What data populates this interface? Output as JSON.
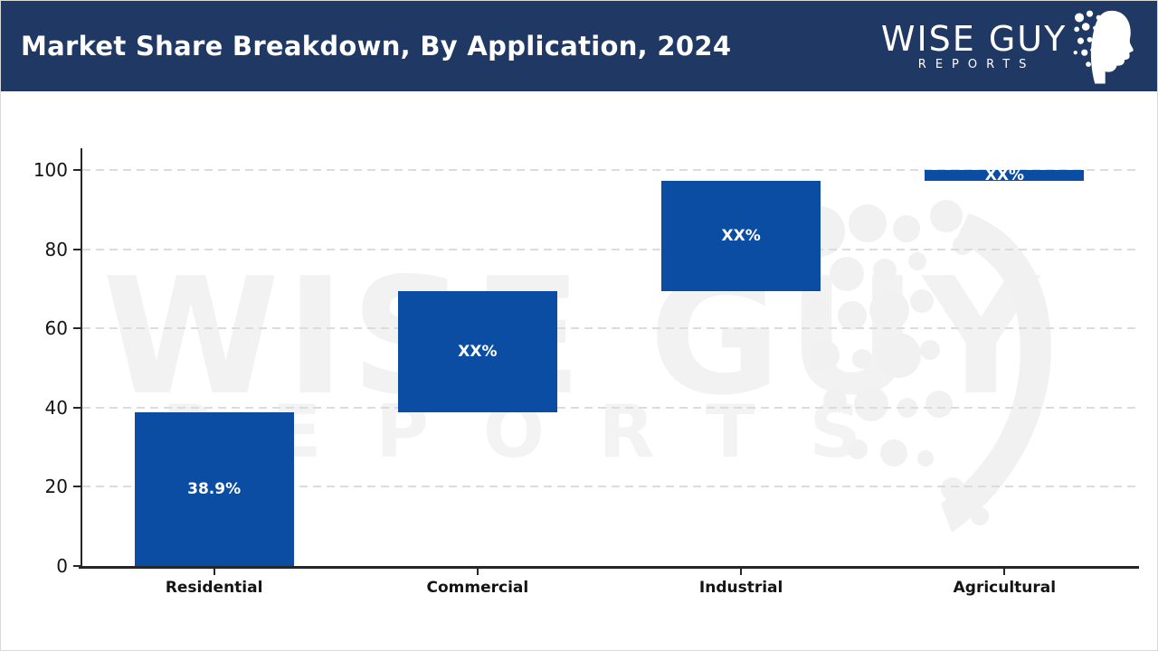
{
  "header": {
    "title": "Market Share Breakdown, By Application, 2024",
    "logo": {
      "line1": "WISE GUY",
      "line2": "REPORTS"
    }
  },
  "watermark": {
    "line1": "WISE GUY",
    "line2": "REPORTS"
  },
  "chart_data": {
    "type": "bar",
    "subtype": "waterfall",
    "title": "Market Share Breakdown, By Application, 2024",
    "categories": [
      "Residential",
      "Commercial",
      "Industrial",
      "Agricultural"
    ],
    "segments": [
      {
        "category": "Residential",
        "start": 0,
        "end": 38.9,
        "value": 38.9,
        "label": "38.9%"
      },
      {
        "category": "Commercial",
        "start": 38.9,
        "end": 69.4,
        "value": 30.5,
        "label": "XX%"
      },
      {
        "category": "Industrial",
        "start": 69.4,
        "end": 97.3,
        "value": 27.9,
        "label": "XX%"
      },
      {
        "category": "Agricultural",
        "start": 97.3,
        "end": 100,
        "value": 2.7,
        "label": "XX%"
      }
    ],
    "xlabel": "",
    "ylabel": "",
    "yticks": [
      0,
      20,
      40,
      60,
      80,
      100
    ],
    "ylim": [
      0,
      105
    ],
    "grid": "horizontal-dashed",
    "legend": "none",
    "colors": {
      "bar": "#0b4da2",
      "bar_label": "#ffffff",
      "axis": "#262626",
      "tick_label": "#141414",
      "grid": "#dcdcdc"
    }
  },
  "colors": {
    "header_bg": "#1f3864",
    "header_text": "#ffffff",
    "page_bg": "#ffffff",
    "page_border": "#d9d9d9",
    "watermark": "#f2f2f2"
  }
}
